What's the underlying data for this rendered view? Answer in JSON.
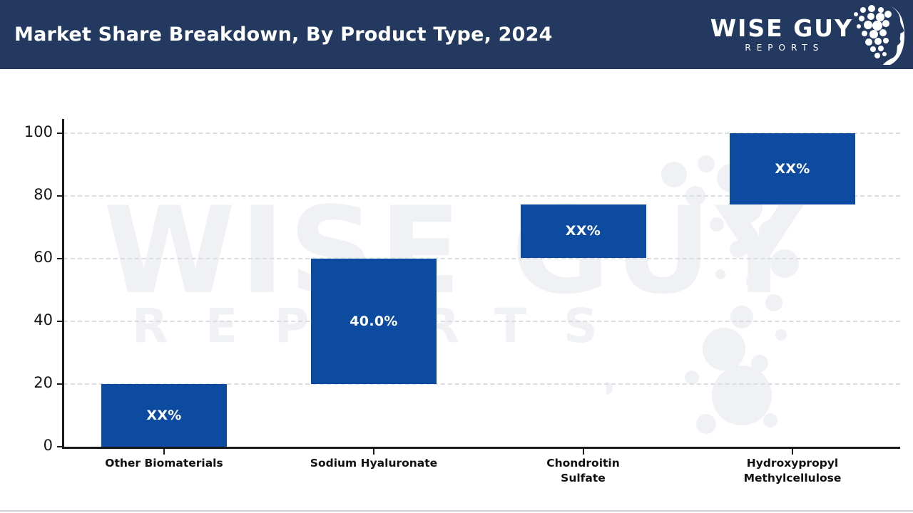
{
  "header": {
    "title": "Market Share Breakdown, By Product Type, 2024",
    "logo": {
      "line1": "WISE GUY",
      "line2": "REPORTS"
    }
  },
  "watermark": {
    "line1": "WISE GUY",
    "line2": "REPORTS"
  },
  "colors": {
    "header_bg": "#23395f",
    "bar": "#0d4ba0",
    "grid": "#dcdde0",
    "axis": "#1a1a1a",
    "watermark": "#f0f1f4",
    "bar_label": "#ffffff",
    "title_text": "#ffffff"
  },
  "chart_data": {
    "type": "bar",
    "subtype": "waterfall",
    "title": "Market Share Breakdown, By Product Type, 2024",
    "categories": [
      "Other Biomaterials",
      "Sodium Hyaluronate",
      "Chondroitin\nSulfate",
      "Hydroxypropyl\nMethylcellulose"
    ],
    "segments": [
      {
        "category": "Other Biomaterials",
        "start": 0,
        "end": 20,
        "label": "XX%"
      },
      {
        "category": "Sodium Hyaluronate",
        "start": 20,
        "end": 60,
        "label": "40.0%"
      },
      {
        "category": "Chondroitin Sulfate",
        "start": 60.2,
        "end": 77.3,
        "label": "XX%"
      },
      {
        "category": "Hydroxypropyl Methylcellulose",
        "start": 77.3,
        "end": 100,
        "label": "XX%"
      }
    ],
    "yticks": [
      0,
      20,
      40,
      60,
      80,
      100
    ],
    "ylim": [
      0,
      104
    ],
    "xlabel": "",
    "ylabel": "",
    "grid": "horizontal-dashed",
    "legend": "none"
  }
}
